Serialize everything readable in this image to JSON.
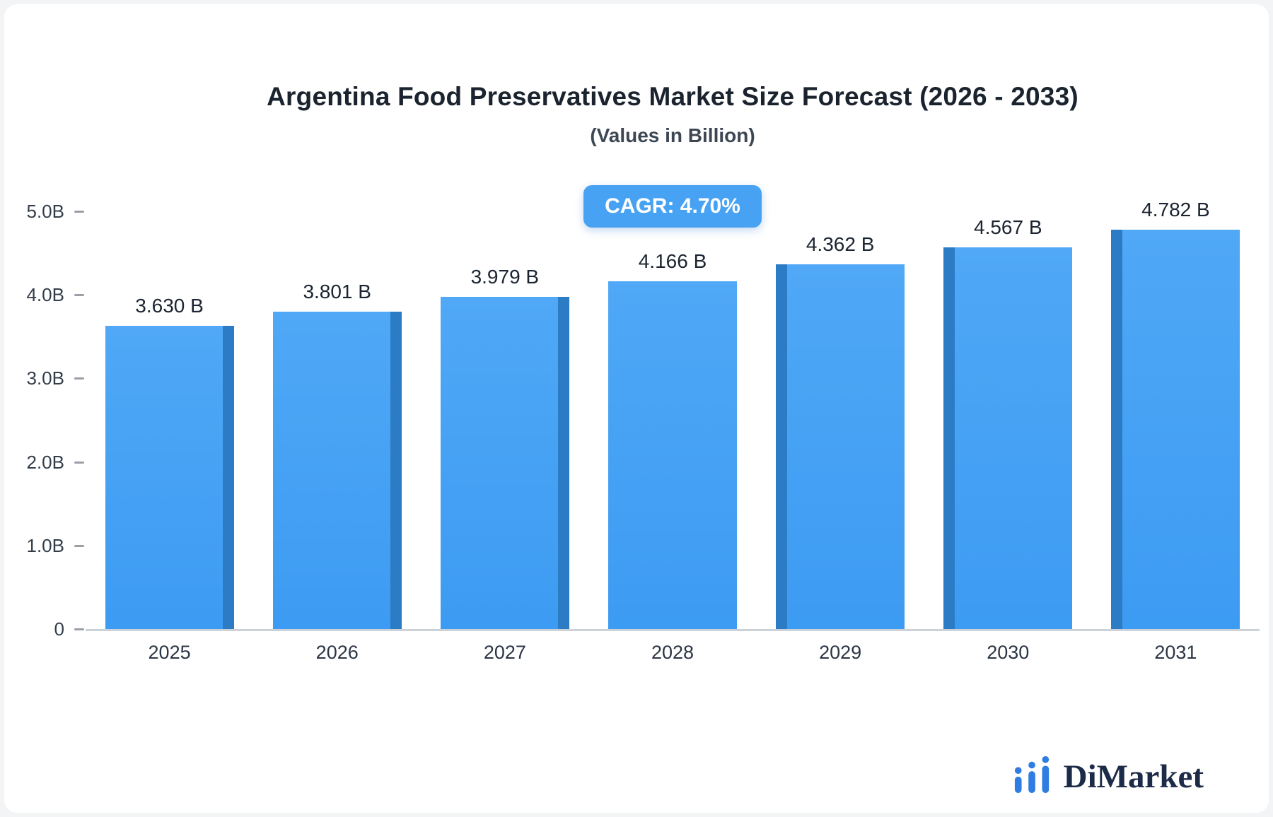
{
  "page": {
    "title": "Argentina Food Preservatives Market Size Forecast (2026 - 2033)",
    "subtitle": "(Values in Billion)",
    "cagr_badge": "CAGR: 4.70%",
    "badge_color": "#47a2f3",
    "background_color": "#ffffff"
  },
  "brand": {
    "name": "DiMarket",
    "icon": "bar-chart-logo-icon",
    "icon_color": "#2f7de2",
    "text_color": "#1c2b47"
  },
  "chart_data": {
    "type": "bar",
    "title": "Argentina Food Preservatives Market Size Forecast (2026 - 2033)",
    "subtitle": "(Values in Billion)",
    "categories": [
      "2025",
      "2026",
      "2027",
      "2028",
      "2029",
      "2030",
      "2031"
    ],
    "values": [
      3.63,
      3.801,
      3.979,
      4.166,
      4.362,
      4.567,
      4.782
    ],
    "value_labels": [
      "3.630 B",
      "3.801 B",
      "3.979 B",
      "4.166 B",
      "4.362 B",
      "4.567 B",
      "4.782 B"
    ],
    "unit": "B",
    "xlabel": "",
    "ylabel": "",
    "ylim": [
      0,
      5.0
    ],
    "yticks": [
      {
        "value": 5.0,
        "label": "5.0B"
      },
      {
        "value": 4.0,
        "label": "4.0B"
      },
      {
        "value": 3.0,
        "label": "3.0B"
      },
      {
        "value": 2.0,
        "label": "2.0B"
      },
      {
        "value": 1.0,
        "label": "1.0B"
      },
      {
        "value": 0,
        "label": "0"
      }
    ],
    "grid": false,
    "legend": "none",
    "annotation": "CAGR: 4.70%",
    "bar_color": "#3f9ff3",
    "bar_side_color": "#2b7cc5"
  }
}
